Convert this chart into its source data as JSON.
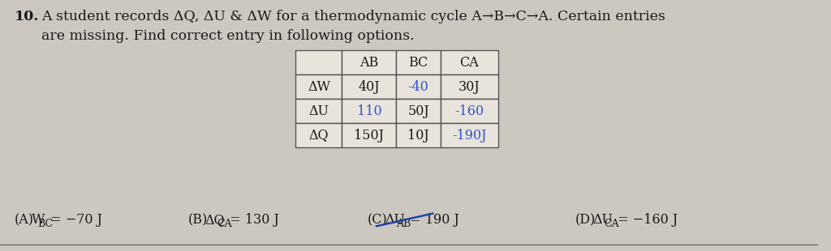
{
  "question_number": "10.",
  "question_text": "A student records ΔQ, ΔU & ΔW for a thermodynamic cycle A→B→C→A. Certain entries",
  "question_text2": "are missing. Find correct entry in following options.",
  "table": {
    "col_headers": [
      "",
      "AB",
      "BC",
      "CA"
    ],
    "rows": [
      [
        "ΔW",
        "40J",
        "-40",
        "30J"
      ],
      [
        "ΔU",
        "110",
        "50J",
        "-160"
      ],
      [
        "ΔQ",
        "150J",
        "10J",
        "-190J"
      ]
    ]
  },
  "highlighted_cells": [
    {
      "row": 0,
      "col": 2
    },
    {
      "row": 1,
      "col": 1
    },
    {
      "row": 1,
      "col": 3
    },
    {
      "row": 2,
      "col": 3
    }
  ],
  "options_raw": [
    "(A)  W_{BC} = -70 J",
    "(B)  ΔQ_{CA} = 130 J",
    "(C)  ΔU_{AB} = 190 J",
    "(D)  ΔU_{CA} = -160 J"
  ],
  "bg_color": "#ccc8bf",
  "text_color": "#1a1a1a",
  "table_bg": "#e8e4dc",
  "table_border_color": "#555555",
  "highlight_text_color": "#3355cc",
  "strikethrough_color": "#2244aa",
  "font_size_question": 12.5,
  "font_size_table": 11.5,
  "font_size_options": 11.5
}
